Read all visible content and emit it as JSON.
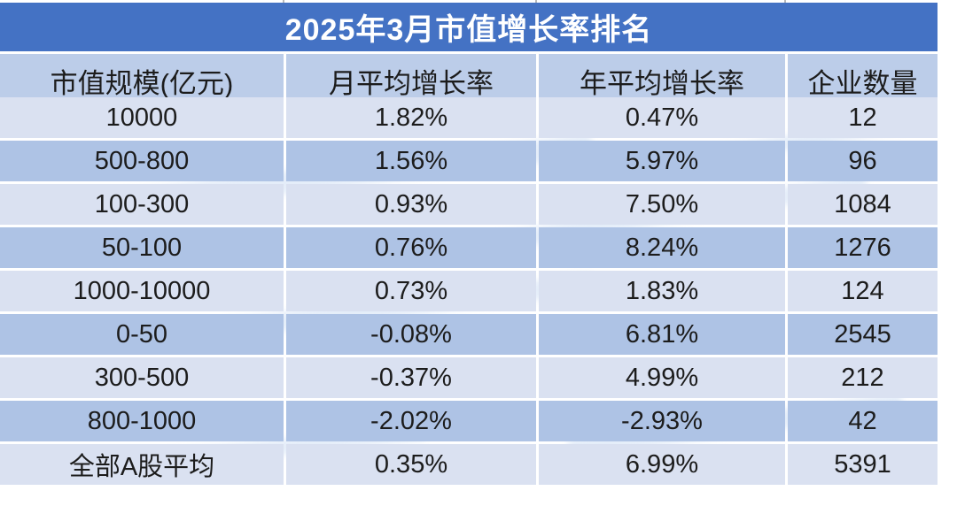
{
  "title": "2025年3月市值增长率排名",
  "chart_data": {
    "type": "table",
    "title": "2025年3月市值增长率排名",
    "columns": [
      "市值规模(亿元)",
      "月平均增长率",
      "年平均增长率",
      "企业数量"
    ],
    "rows": [
      [
        "10000",
        "1.82%",
        "0.47%",
        "12"
      ],
      [
        "500-800",
        "1.56%",
        "5.97%",
        "96"
      ],
      [
        "100-300",
        "0.93%",
        "7.50%",
        "1084"
      ],
      [
        "50-100",
        "0.76%",
        "8.24%",
        "1276"
      ],
      [
        "1000-10000",
        "0.73%",
        "1.83%",
        "124"
      ],
      [
        "0-50",
        "-0.08%",
        "6.81%",
        "2545"
      ],
      [
        "300-500",
        "-0.37%",
        "4.99%",
        "212"
      ],
      [
        "800-1000",
        "-2.02%",
        "-2.93%",
        "42"
      ],
      [
        "全部A股平均",
        "0.35%",
        "6.99%",
        "5391"
      ]
    ]
  },
  "colors": {
    "title_bar_bg": "#4472c4",
    "title_text": "#ffffff",
    "header_bg": "#bccde9",
    "row_light_bg": "#dae1f1",
    "row_dark_bg": "#aec3e5",
    "body_text": "#1c1c1c",
    "grid_line": "#ffffff"
  }
}
